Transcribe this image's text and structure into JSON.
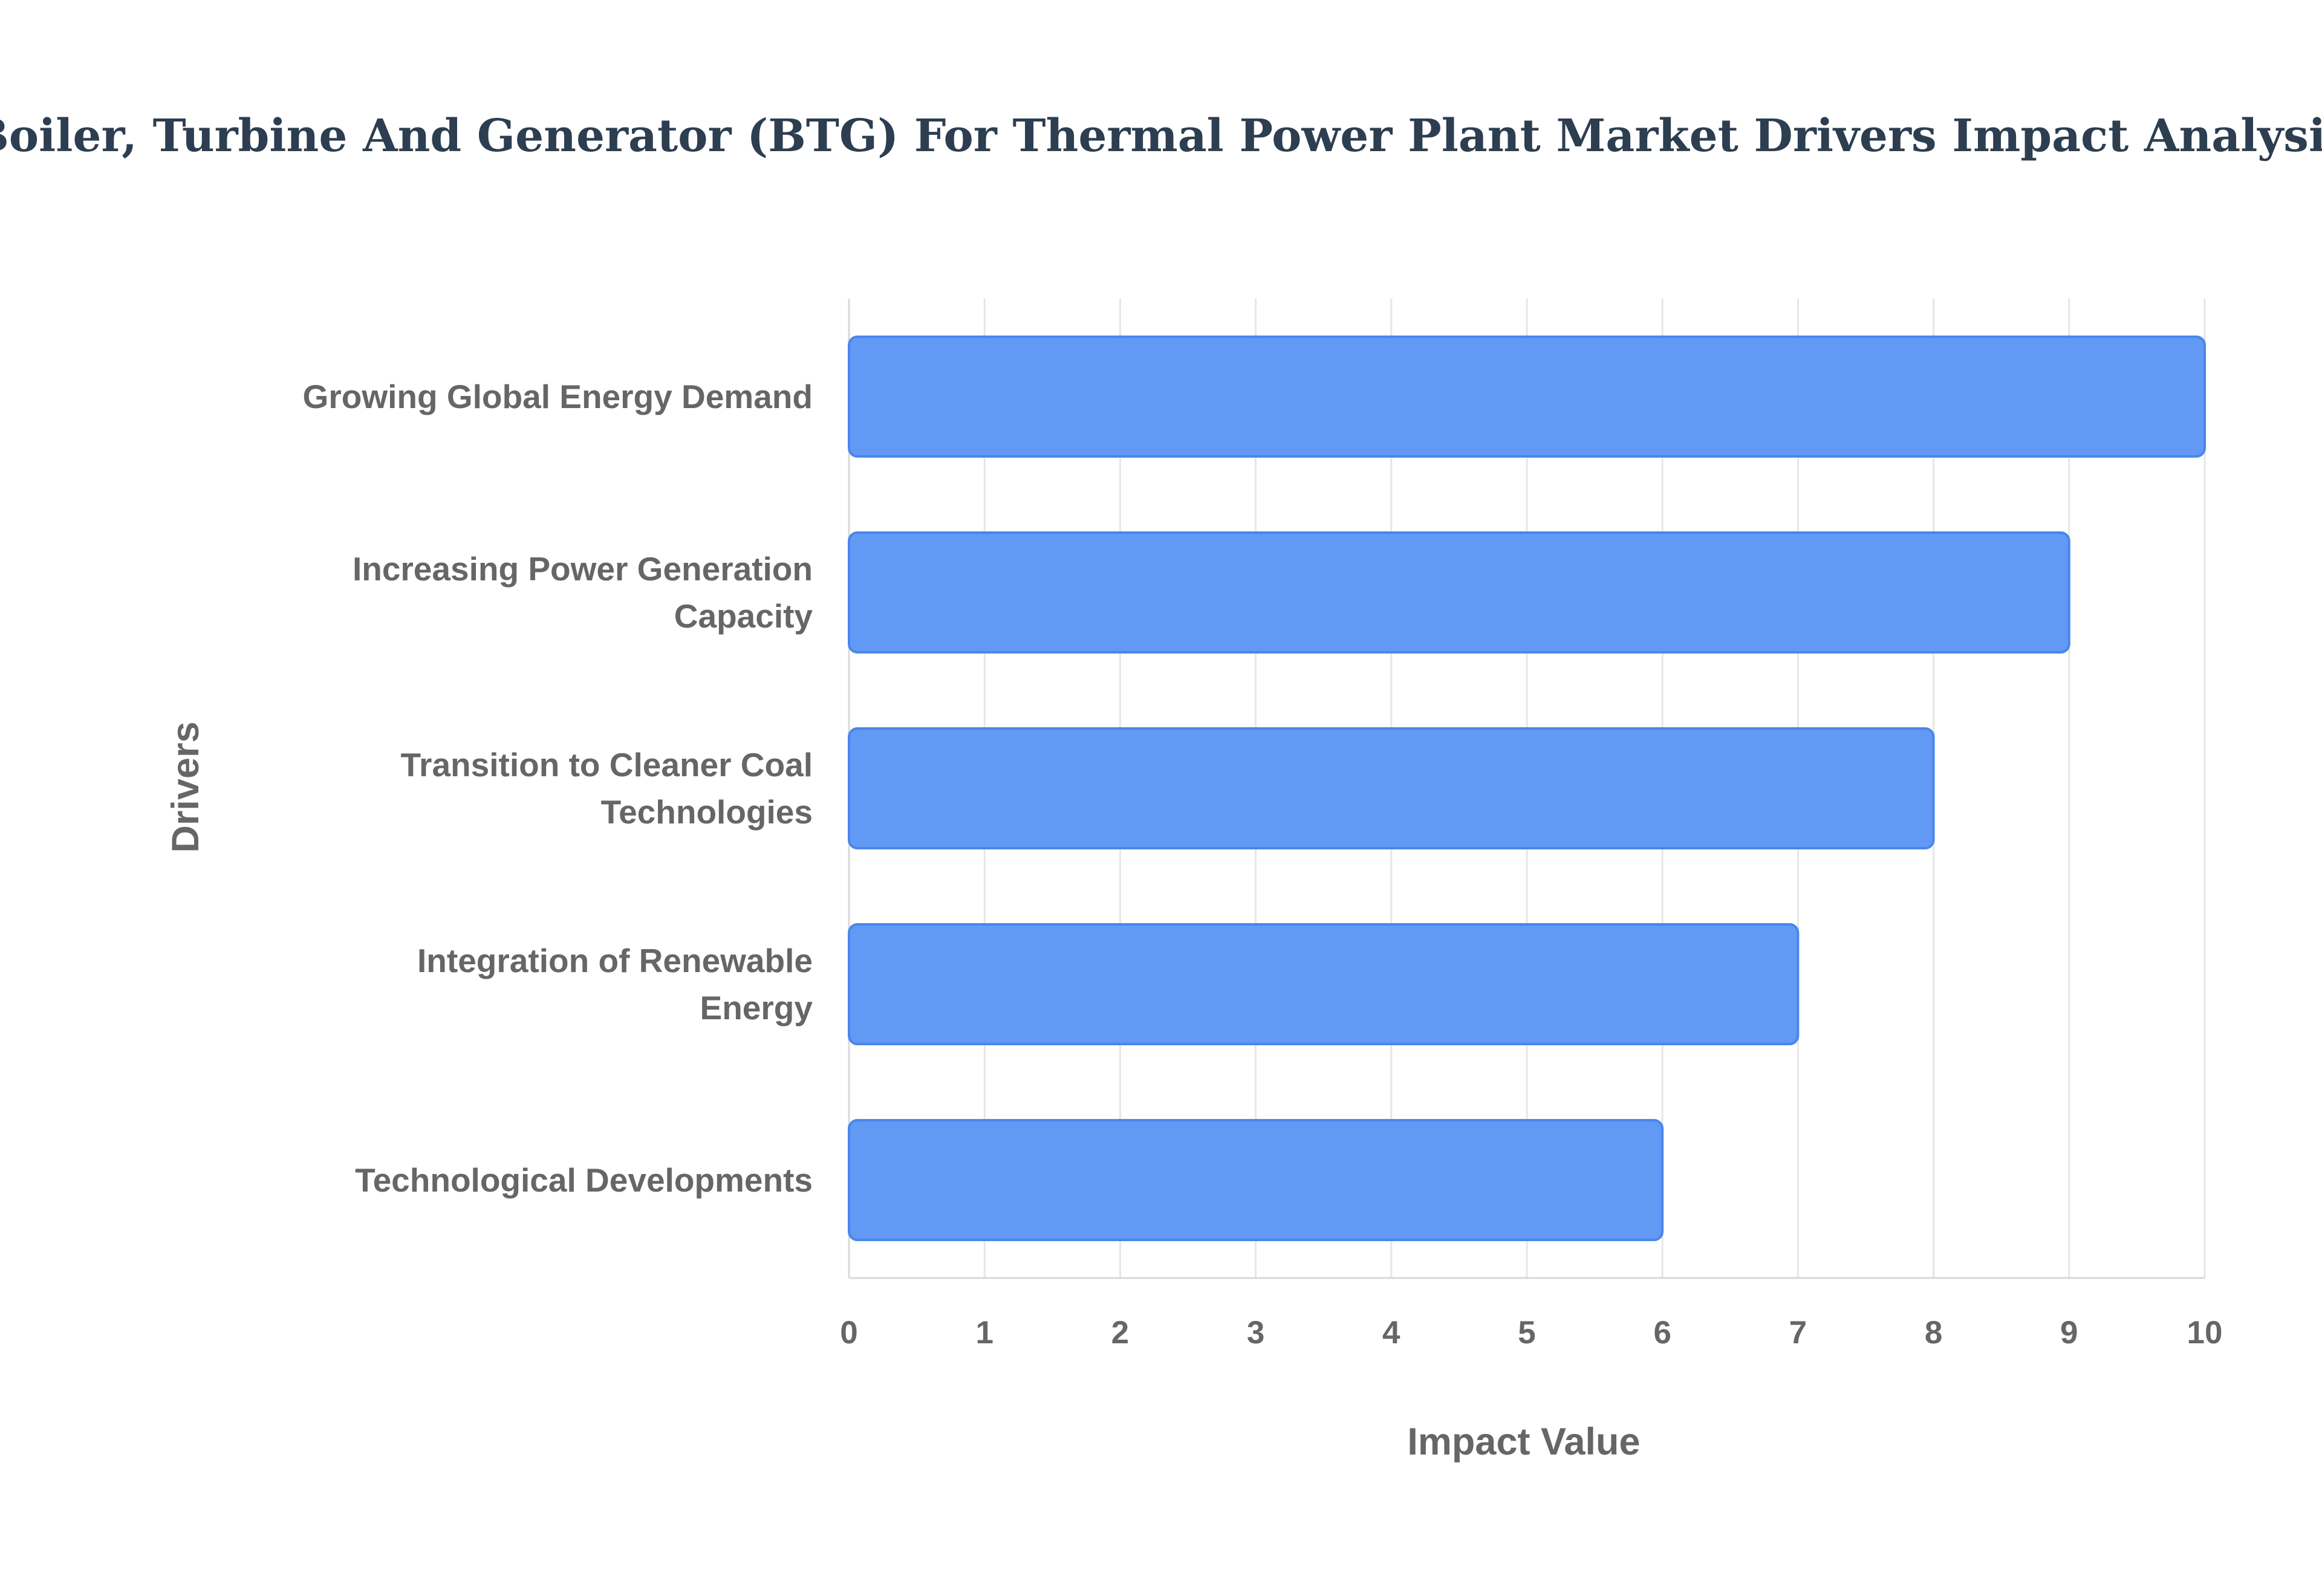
{
  "chart_data": {
    "type": "bar",
    "orientation": "horizontal",
    "title": "Boiler, Turbine And Generator (BTG) For Thermal Power Plant Market Drivers Impact Analysis",
    "xlabel": "Impact Value",
    "ylabel": "Drivers",
    "categories": [
      "Growing Global Energy Demand",
      "Increasing Power Generation Capacity",
      "Transition to Cleaner Coal Technologies",
      "Integration of Renewable Energy",
      "Technological Developments"
    ],
    "category_lines": [
      [
        "Growing Global Energy Demand"
      ],
      [
        "Increasing Power Generation",
        "Capacity"
      ],
      [
        "Transition to Cleaner Coal",
        "Technologies"
      ],
      [
        "Integration of Renewable",
        "Energy"
      ],
      [
        "Technological Developments"
      ]
    ],
    "values": [
      10,
      9,
      8,
      7,
      6
    ],
    "xlim": [
      0,
      10
    ],
    "xticks": [
      "0",
      "1",
      "2",
      "3",
      "4",
      "5",
      "6",
      "7",
      "8",
      "9",
      "10"
    ],
    "grid": true,
    "legend": "none",
    "bar_color": "#6199f5",
    "bar_border_color": "#4a86ea"
  }
}
